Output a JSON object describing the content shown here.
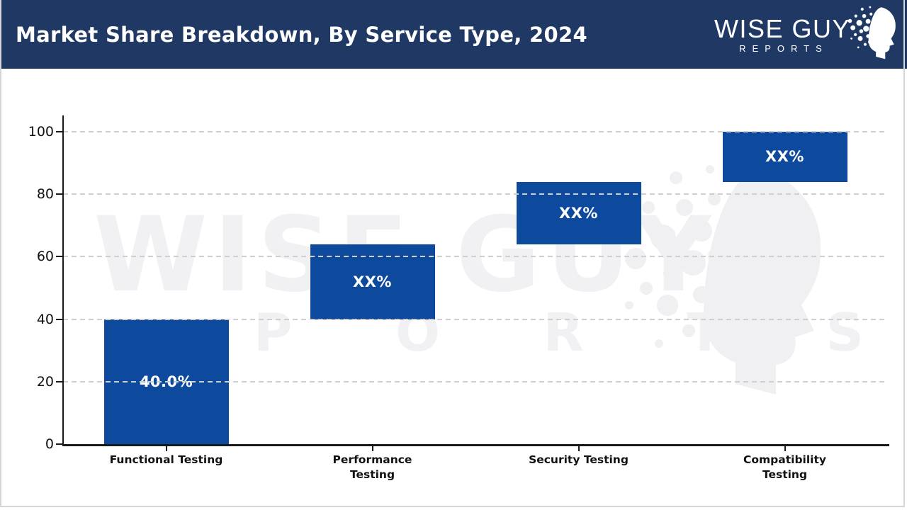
{
  "header": {
    "title": "Market Share Breakdown, By Service Type, 2024",
    "bg_color": "#1f3864",
    "logo": {
      "line1": "WISE GUY",
      "line2": "REPORTS"
    }
  },
  "watermark": {
    "line1": "WISE GUY",
    "line2": "P O R T S"
  },
  "chart_data": {
    "type": "bar",
    "subtype": "waterfall",
    "title": "Market Share Breakdown, By Service Type, 2024",
    "categories": [
      "Functional Testing",
      "Performance Testing",
      "Security Testing",
      "Compatibility Testing"
    ],
    "categories_lines": [
      [
        "Functional Testing"
      ],
      [
        "Performance",
        "Testing"
      ],
      [
        "Security Testing"
      ],
      [
        "Compatibility",
        "Testing"
      ]
    ],
    "segments": [
      {
        "category": "Functional Testing",
        "start": 0,
        "end": 40,
        "value": 40,
        "label": "40.0%"
      },
      {
        "category": "Performance Testing",
        "start": 40,
        "end": 64,
        "value": 24,
        "label": "XX%"
      },
      {
        "category": "Security Testing",
        "start": 64,
        "end": 84,
        "value": 20,
        "label": "XX%"
      },
      {
        "category": "Compatibility Testing",
        "start": 84,
        "end": 100,
        "value": 16,
        "label": "XX%"
      }
    ],
    "yticks": [
      0,
      20,
      40,
      60,
      80,
      100
    ],
    "ylim": [
      0,
      105
    ],
    "xlabel": "",
    "ylabel": "",
    "grid": "horizontal-dashed",
    "grid_color": "#cfcfcf",
    "legend": "none",
    "bar_color": "#0d4a9e",
    "label_color": "#ffffff"
  }
}
